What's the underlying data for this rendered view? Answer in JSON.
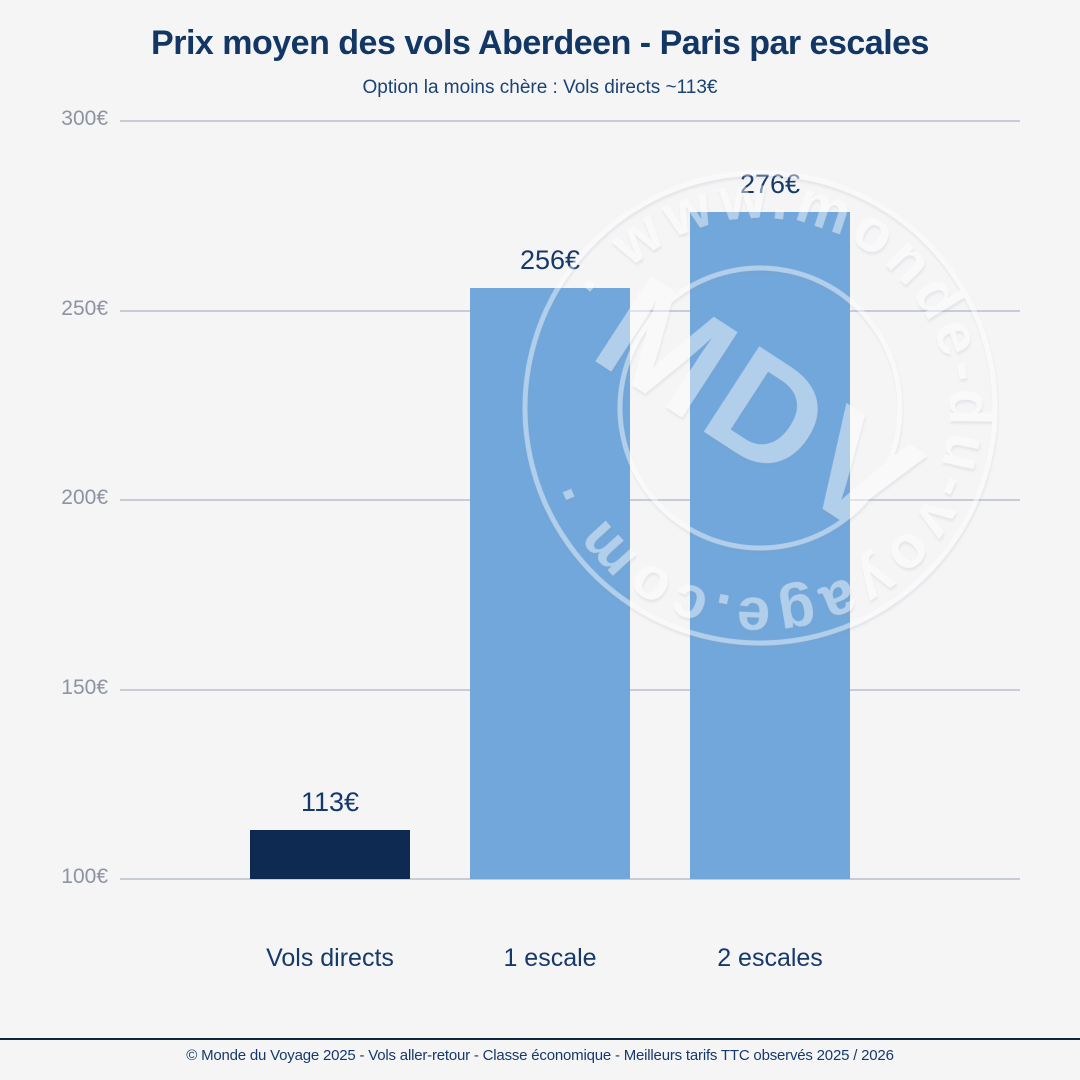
{
  "chart_data": {
    "type": "bar",
    "title": "Prix moyen des vols Aberdeen - Paris par escales",
    "subtitle": "Option la moins chère : Vols directs ~113€",
    "categories": [
      "Vols directs",
      "1 escale",
      "2 escales"
    ],
    "values": [
      113,
      256,
      276
    ],
    "value_labels": [
      "113€",
      "256€",
      "276€"
    ],
    "yticks": [
      300,
      250,
      200,
      150,
      100
    ],
    "ytick_labels": [
      "300€",
      "250€",
      "200€",
      "150€",
      "100€"
    ],
    "ylim": [
      100,
      300
    ],
    "grid": true,
    "legend": "none",
    "bar_colors": [
      "#0e2a52",
      "#72a7db",
      "#72a7db"
    ],
    "highlight_bar_color": "#0e2a52",
    "default_bar_color": "#72a7db"
  },
  "watermark": {
    "ring_text": "· www.monde-du-voyage.com ·",
    "center_text": "MDV"
  },
  "footer": {
    "text": "© Monde du Voyage 2025 - Vols aller-retour - Classe économique - Meilleurs tarifs TTC observés 2025 / 2026"
  },
  "colors": {
    "background": "#f5f5f6",
    "title_text": "#123764",
    "label_text": "#16396b",
    "axis_tick_text": "#8d93a3",
    "gridline": "#c7ccd7",
    "footer_rule": "#10253f",
    "watermark": "#ffffff"
  }
}
